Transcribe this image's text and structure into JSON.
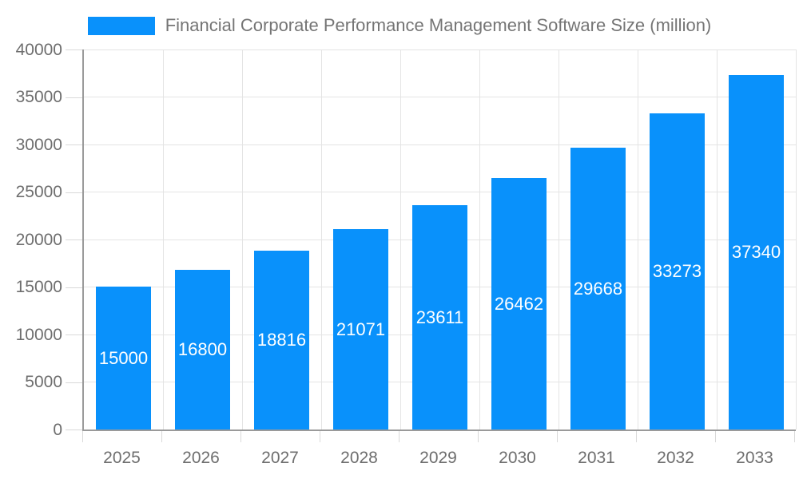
{
  "legend": {
    "label": "Financial Corporate Performance Management Software Size (million)"
  },
  "chart_data": {
    "type": "bar",
    "title": "Financial Corporate Performance Management Software Size (million)",
    "categories": [
      "2025",
      "2026",
      "2027",
      "2028",
      "2029",
      "2030",
      "2031",
      "2032",
      "2033"
    ],
    "values": [
      15000,
      16800,
      18816,
      21071,
      23611,
      26462,
      29668,
      33273,
      37340
    ],
    "value_labels": [
      "15000",
      "16800",
      "18816",
      "21071",
      "23611",
      "26462",
      "29668",
      "33273",
      "37340"
    ],
    "xlabel": "",
    "ylabel": "",
    "ylim": [
      0,
      40000
    ],
    "ytick_step": 5000,
    "yticks": [
      "0",
      "5000",
      "10000",
      "15000",
      "20000",
      "25000",
      "30000",
      "35000",
      "40000"
    ],
    "grid": true,
    "legend_position": "top",
    "bar_color": "#0991fb",
    "bar_label_color": "#ffffff",
    "axis_text_color": "#6e6e6e",
    "legend_text_color": "#757575",
    "gridline_color": "#e4e4e4",
    "axis_line_color": "#9a9a9a"
  }
}
